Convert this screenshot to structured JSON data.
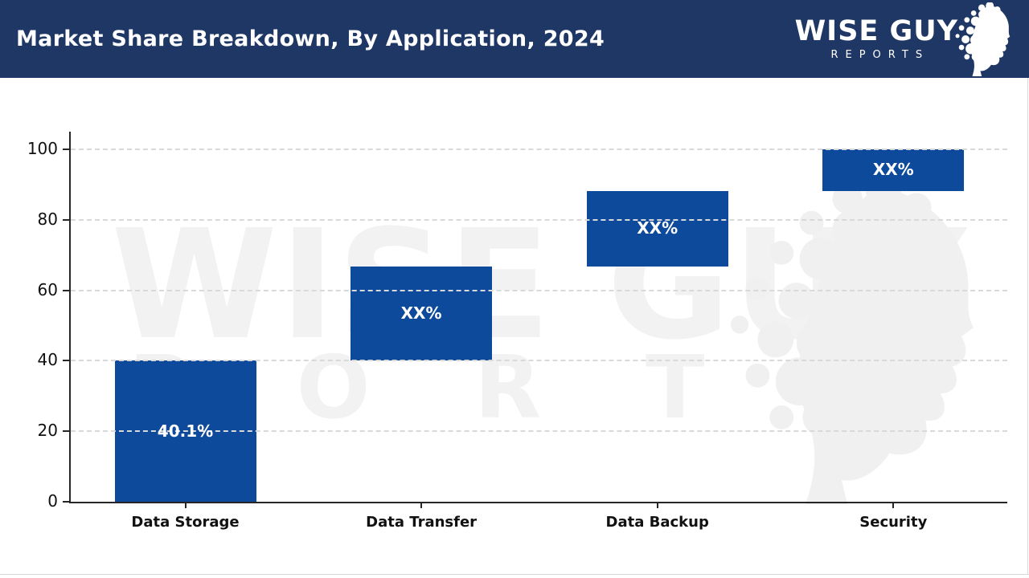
{
  "header": {
    "title": "Market Share Breakdown, By Application, 2024",
    "bg_color": "#1f3765",
    "logo_line1": "WISE GUY",
    "logo_line2": "REPORTS"
  },
  "watermark": {
    "line1": "WISE GUY",
    "line2": "P O R T S"
  },
  "chart_data": {
    "type": "bar",
    "variant": "waterfall-floating-bars",
    "title": "Market Share Breakdown, By Application, 2024",
    "categories": [
      "Data Storage",
      "Data Transfer",
      "Data Backup",
      "Security"
    ],
    "segments": [
      {
        "category": "Data Storage",
        "start": 0,
        "end": 40.1,
        "label": "40.1%"
      },
      {
        "category": "Data Transfer",
        "start": 40.1,
        "end": 66.8,
        "label": "XX%"
      },
      {
        "category": "Data Backup",
        "start": 66.8,
        "end": 88.2,
        "label": "XX%"
      },
      {
        "category": "Security",
        "start": 88.2,
        "end": 100,
        "label": "XX%"
      }
    ],
    "ylim": [
      0,
      100
    ],
    "yticks": [
      0,
      20,
      40,
      60,
      80,
      100
    ],
    "grid": "horizontal-dashed",
    "legend": "none",
    "bar_color": "#0d4a9c",
    "bar_label_color": "#ffffff",
    "axis_color": "#262626",
    "grid_color": "#d9d9d9"
  }
}
